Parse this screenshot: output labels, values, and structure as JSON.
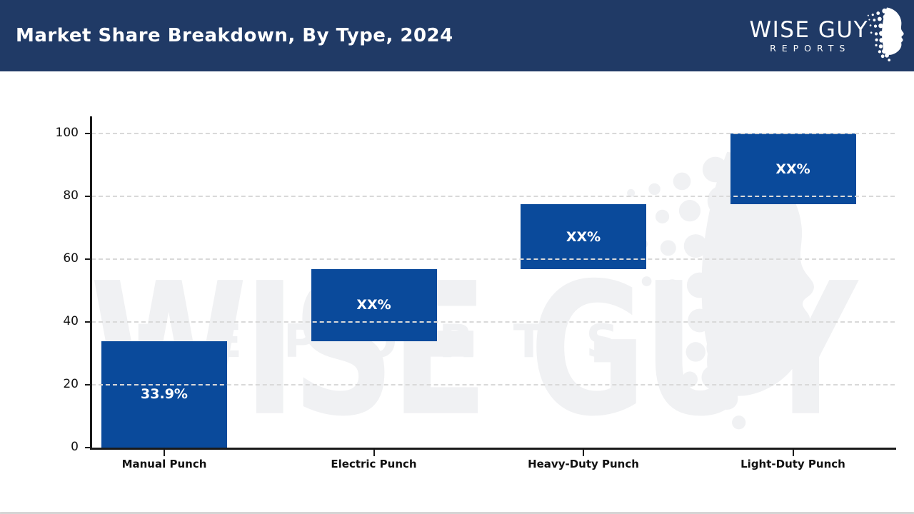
{
  "header": {
    "title": "Market Share Breakdown, By Type, 2024",
    "logo": {
      "wordmark": "WISE GUY",
      "subtext": "REPORTS"
    }
  },
  "watermark": {
    "line1": "WISE GUY",
    "line2": "REPORTS"
  },
  "chart_data": {
    "type": "bar",
    "subtype": "waterfall",
    "title": "Market Share Breakdown, By Type, 2024",
    "xlabel": "",
    "ylabel": "",
    "ylim": [
      0,
      105
    ],
    "yticks": [
      0,
      20,
      40,
      60,
      80,
      100
    ],
    "grid": "horizontal-dashed",
    "legend": "none",
    "categories": [
      "Manual Punch",
      "Electric Punch",
      "Heavy-Duty Punch",
      "Light-Duty Punch"
    ],
    "segments": [
      {
        "category": "Manual Punch",
        "start": 0,
        "end": 33.9,
        "label": "33.9%"
      },
      {
        "category": "Electric Punch",
        "start": 33.9,
        "end": 56.9,
        "label": "XX%"
      },
      {
        "category": "Heavy-Duty Punch",
        "start": 56.9,
        "end": 77.4,
        "label": "XX%"
      },
      {
        "category": "Light-Duty Punch",
        "start": 77.4,
        "end": 100,
        "label": "XX%"
      }
    ]
  },
  "colors": {
    "bar": "#0a4a9b",
    "header_bg": "#203a66",
    "watermark": "#f0f1f3",
    "grid": "#d9d9d9",
    "axis": "#1a1a1a",
    "text": "#111111",
    "white": "#ffffff"
  }
}
